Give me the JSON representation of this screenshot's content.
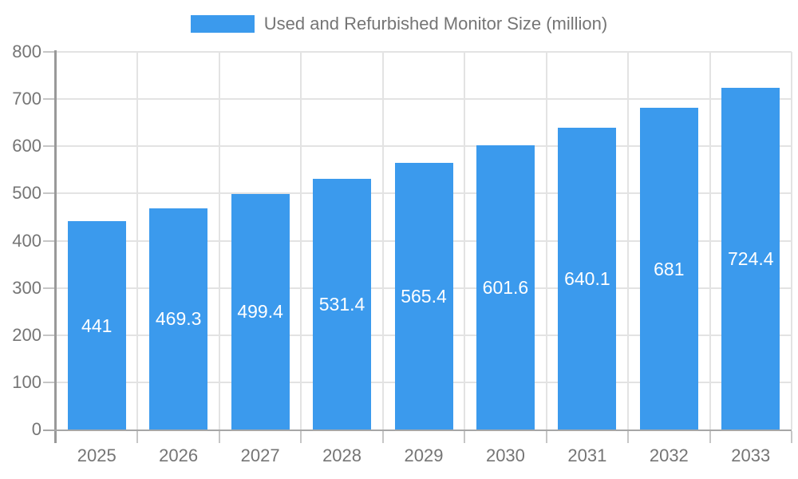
{
  "chart_data": {
    "type": "bar",
    "title": "Used and Refurbished Monitor Size (million)",
    "categories": [
      "2025",
      "2026",
      "2027",
      "2028",
      "2029",
      "2030",
      "2031",
      "2032",
      "2033"
    ],
    "values": [
      441,
      469.3,
      499.4,
      531.4,
      565.4,
      601.6,
      640.1,
      681,
      724.4
    ],
    "value_labels": [
      "441",
      "469.3",
      "499.4",
      "531.4",
      "565.4",
      "601.6",
      "640.1",
      "681",
      "724.4"
    ],
    "xlabel": "",
    "ylabel": "",
    "ylim": [
      0,
      800
    ],
    "y_ticks": [
      0,
      100,
      200,
      300,
      400,
      500,
      600,
      700,
      800
    ],
    "grid": "both",
    "legend_position": "top-center",
    "legend_entries": [
      "Used and Refurbished Monitor Size (million)"
    ],
    "colors": {
      "bar": "#3b9aed",
      "value_text": "#ffffff",
      "axis_label": "#757575",
      "legend_text": "#757575",
      "gridline": "#e3e3e3",
      "tick": "#c6c6c6",
      "y_axis_line": "#999999",
      "x_axis_line": "#a6a6a6",
      "background": "#ffffff"
    }
  }
}
